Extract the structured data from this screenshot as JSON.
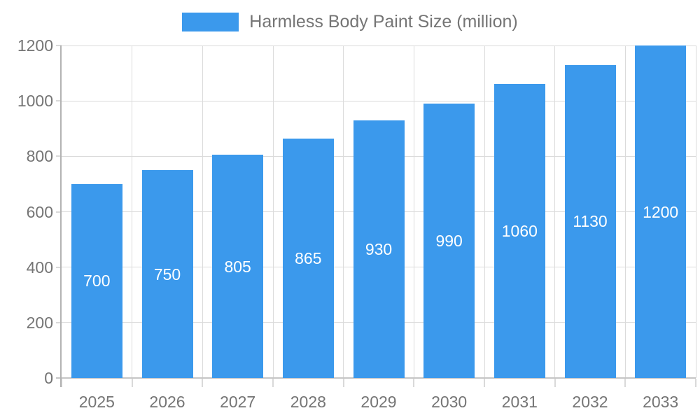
{
  "chart_data": {
    "type": "bar",
    "title": "Harmless Body Paint Size (million)",
    "categories": [
      "2025",
      "2026",
      "2027",
      "2028",
      "2029",
      "2030",
      "2031",
      "2032",
      "2033"
    ],
    "values": [
      700,
      750,
      805,
      865,
      930,
      990,
      1060,
      1130,
      1200
    ],
    "value_labels": [
      "700",
      "750",
      "805",
      "865",
      "930",
      "990",
      "1060",
      "1130",
      "1200"
    ],
    "xlabel": "",
    "ylabel": "",
    "ylim": [
      0,
      1200
    ],
    "yticks": [
      0,
      200,
      400,
      600,
      800,
      1000,
      1200
    ],
    "grid": true,
    "legend_position": "top",
    "colors": {
      "bar": "#3b99ec",
      "value_label": "#ffffff",
      "tick_label": "#757575",
      "legend_label": "#757575",
      "gridline": "#dbdbdb",
      "x_axis_line": "#c6c6c6",
      "y_axis_line": "#b3b3b3"
    }
  }
}
